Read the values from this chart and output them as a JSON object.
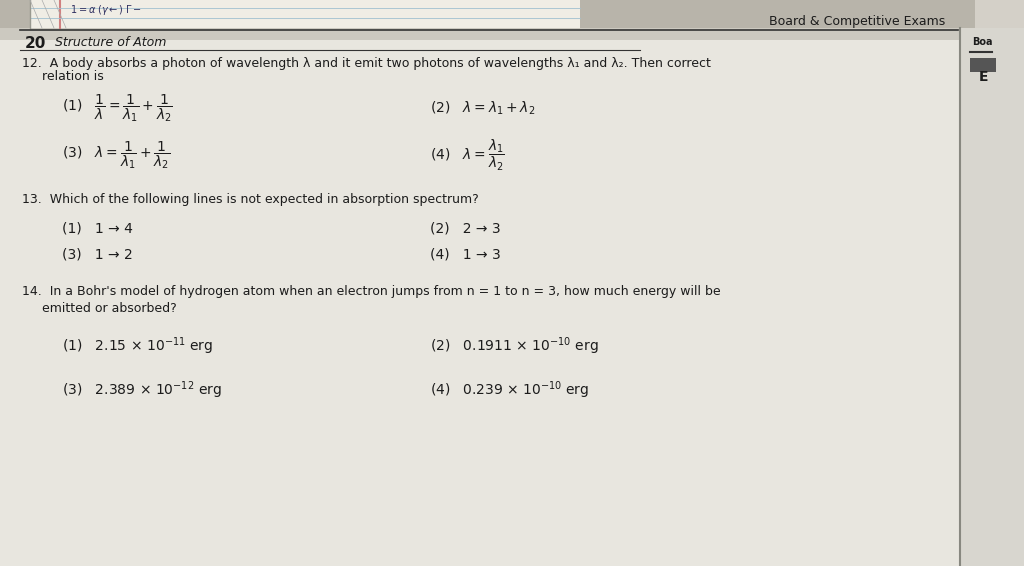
{
  "bg_main": "#d4d0c8",
  "page_bg": "#e8e6df",
  "page_bg2": "#dddbd4",
  "header_text": "Board & Competitive Exams",
  "chapter_number": "20",
  "chapter_title": "Structure of Atom",
  "right_page_bg": "#d8d6cf",
  "right_tab_dark": "#555555",
  "right_tab_letter": "E",
  "right_tab_bo": "Boa",
  "font_color": "#1c1c1c",
  "header_fontsize": 9,
  "body_fontsize": 9,
  "math_fontsize": 10,
  "option_fontsize": 10
}
